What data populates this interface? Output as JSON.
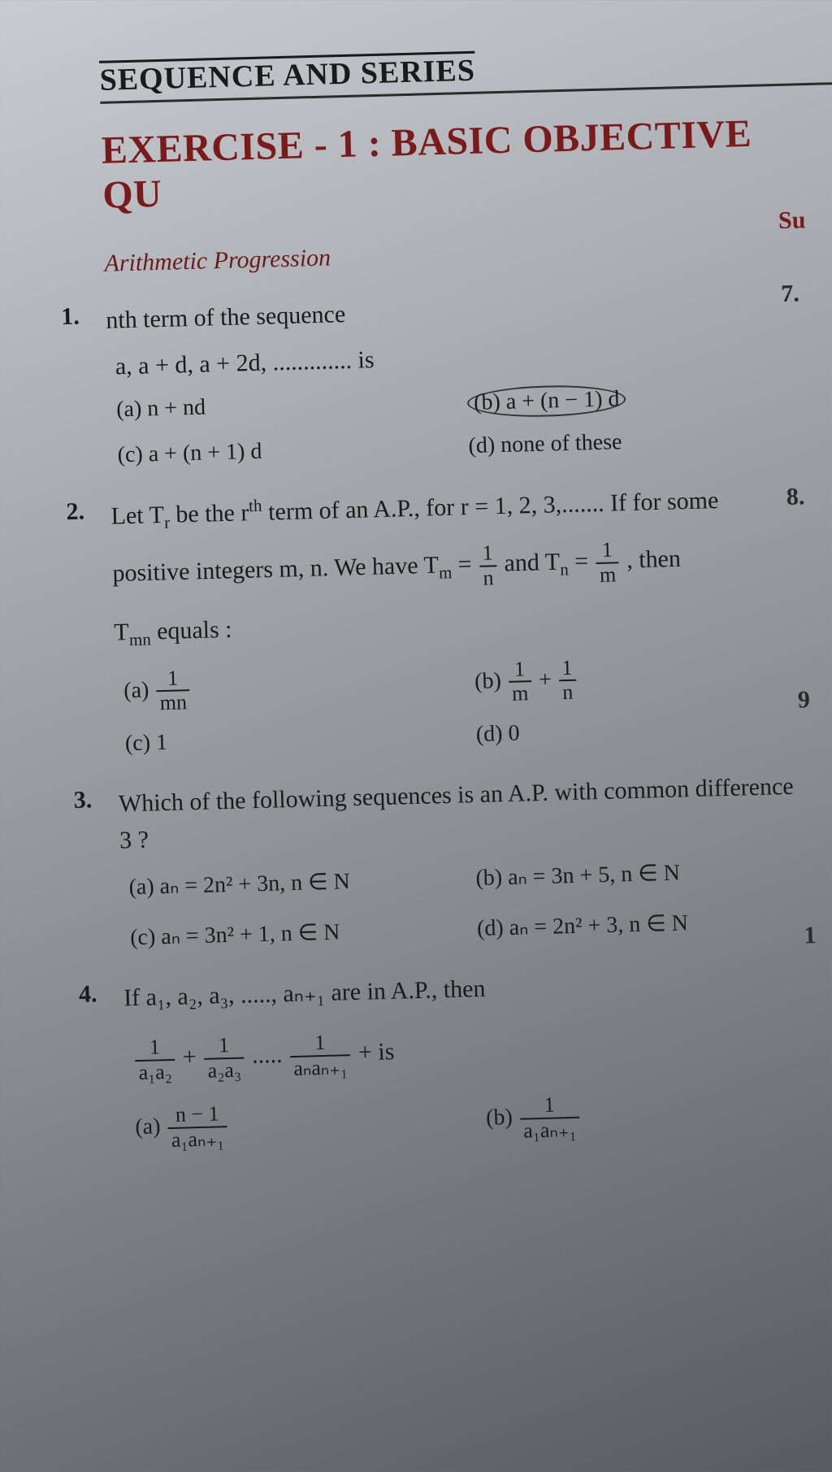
{
  "chapter": "SEQUENCE AND SERIES",
  "exercise": "EXERCISE - 1 : BASIC OBJECTIVE QU",
  "side_letter": "Su",
  "section": "Arithmetic Progression",
  "side_nums": {
    "n7": "7.",
    "n8": "8.",
    "n9": "9",
    "n1": "1"
  },
  "q1": {
    "num": "1.",
    "text": "nth term of the sequence",
    "seq": "a, a + d, a + 2d, ............. is",
    "opts": {
      "a": "(a) n + nd",
      "b": "(b) a + (n − 1) d",
      "c": "(c) a + (n + 1) d",
      "d": "(d) none of these"
    }
  },
  "q2": {
    "num": "2.",
    "text_p1": "Let T",
    "text_p2": " be the r",
    "text_p3": " term of an A.P., for r = 1, 2, 3,....... If for some",
    "line2_p1": "positive integers m, n. We have T",
    "line2_p2": " = ",
    "line2_p3": " and T",
    "line2_p4": " = ",
    "line2_p5": ", then",
    "line3": " equals :",
    "tmn": "T",
    "opts": {
      "a": "(a) ",
      "b": "(b) ",
      "c": "(c) 1",
      "d": "(d) 0"
    },
    "fracs": {
      "f1n": "1",
      "f1d": "n",
      "f2n": "1",
      "f2d": "m",
      "fan": "1",
      "fad": "mn",
      "fb1n": "1",
      "fb1d": "m",
      "fb2n": "1",
      "fb2d": "n"
    }
  },
  "q3": {
    "num": "3.",
    "text": "Which of the following sequences is an A.P. with common difference 3 ?",
    "opts": {
      "a": "(a) aₙ = 2n² + 3n, n ∈ N",
      "b": "(b) aₙ = 3n + 5, n ∈ N",
      "c": "(c) aₙ = 3n² + 1, n ∈ N",
      "d": "(d) aₙ = 2n² + 3, n ∈ N"
    }
  },
  "q4": {
    "num": "4.",
    "text": "If a₁, a₂, a₃, ....., aₙ₊₁ are in A.P., then",
    "expr_tail": " + is",
    "opts": {
      "a": "(a) ",
      "b": "(b) "
    },
    "fracs": {
      "e1n": "1",
      "e1d": "a₁a₂",
      "e2n": "1",
      "e2d": "a₂a₃",
      "e3n": "1",
      "e3d": "aₙaₙ₊₁",
      "an": "n − 1",
      "ad": "a₁aₙ₊₁",
      "bn": "1",
      "bd": "a₁aₙ₊₁"
    }
  }
}
